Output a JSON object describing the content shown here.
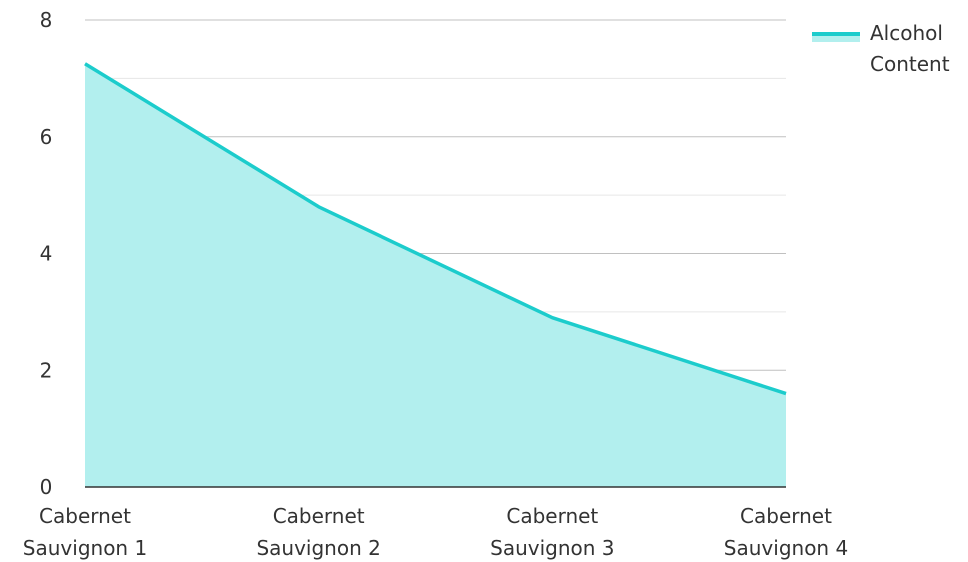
{
  "chart_data": {
    "type": "area",
    "categories": [
      [
        "Cabernet",
        "Sauvignon 1"
      ],
      [
        "Cabernet",
        "Sauvignon 2"
      ],
      [
        "Cabernet",
        "Sauvignon 3"
      ],
      [
        "Cabernet",
        "Sauvignon 4"
      ]
    ],
    "series": [
      {
        "name": [
          "Alcohol",
          "Content"
        ],
        "values": [
          7.25,
          4.8,
          2.9,
          1.6
        ],
        "line_color": "#1ccccc",
        "fill_color": "#b2efee"
      }
    ],
    "ylim": [
      0,
      8
    ],
    "yticks": [
      "0",
      "2",
      "4",
      "6",
      "8"
    ],
    "grid": true,
    "legend_position": "top-right",
    "grid_major_color": "#c0c0c0",
    "grid_minor_color": "#e6e6e6",
    "axis_color": "#333333"
  }
}
